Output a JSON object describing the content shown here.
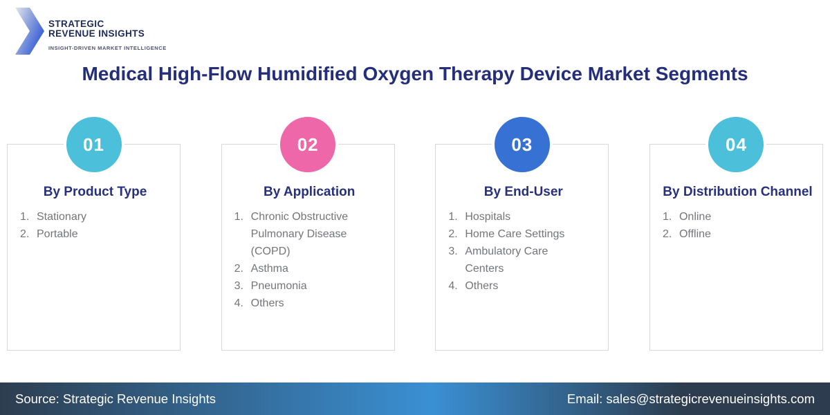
{
  "logo": {
    "name_line1": "STRATEGIC",
    "name_line2": "REVENUE INSIGHTS",
    "tagline": "INSIGHT-DRIVEN MARKET INTELLIGENCE"
  },
  "title": "Medical High-Flow Humidified Oxygen Therapy Device Market Segments",
  "segments": [
    {
      "number": "01",
      "heading": "By Product Type",
      "accent_color": "#4cc0da",
      "items": [
        "Stationary",
        "Portable"
      ]
    },
    {
      "number": "02",
      "heading": "By Application",
      "accent_color": "#ee68a9",
      "items": [
        "Chronic Obstructive Pulmonary Disease (COPD)",
        "Asthma",
        "Pneumonia",
        "Others"
      ]
    },
    {
      "number": "03",
      "heading": "By End-User",
      "accent_color": "#3671d3",
      "items": [
        "Hospitals",
        "Home Care Settings",
        "Ambulatory Care Centers",
        "Others"
      ]
    },
    {
      "number": "04",
      "heading": "By Distribution Channel",
      "accent_color": "#4cc0da",
      "items": [
        "Online",
        "Offline"
      ]
    }
  ],
  "footer": {
    "source": "Source: Strategic Revenue Insights",
    "email": "Email: sales@strategicrevenueinsights.com"
  },
  "colors": {
    "title_text": "#242e7a",
    "heading_text": "#28307d",
    "list_text": "#737579",
    "card_border": "#d8d8d8",
    "logo_navy": "#1e2a5a",
    "footer_dark": "#2d3d4f",
    "footer_blue": "#3a90d4"
  },
  "chart_data": {
    "type": "table",
    "title": "Medical High-Flow Humidified Oxygen Therapy Device Market Segments",
    "categories": [
      "By Product Type",
      "By Application",
      "By End-User",
      "By Distribution Channel"
    ],
    "series": [
      {
        "name": "By Product Type",
        "values": [
          "Stationary",
          "Portable"
        ]
      },
      {
        "name": "By Application",
        "values": [
          "Chronic Obstructive Pulmonary Disease (COPD)",
          "Asthma",
          "Pneumonia",
          "Others"
        ]
      },
      {
        "name": "By End-User",
        "values": [
          "Hospitals",
          "Home Care Settings",
          "Ambulatory Care Centers",
          "Others"
        ]
      },
      {
        "name": "By Distribution Channel",
        "values": [
          "Online",
          "Offline"
        ]
      }
    ]
  }
}
